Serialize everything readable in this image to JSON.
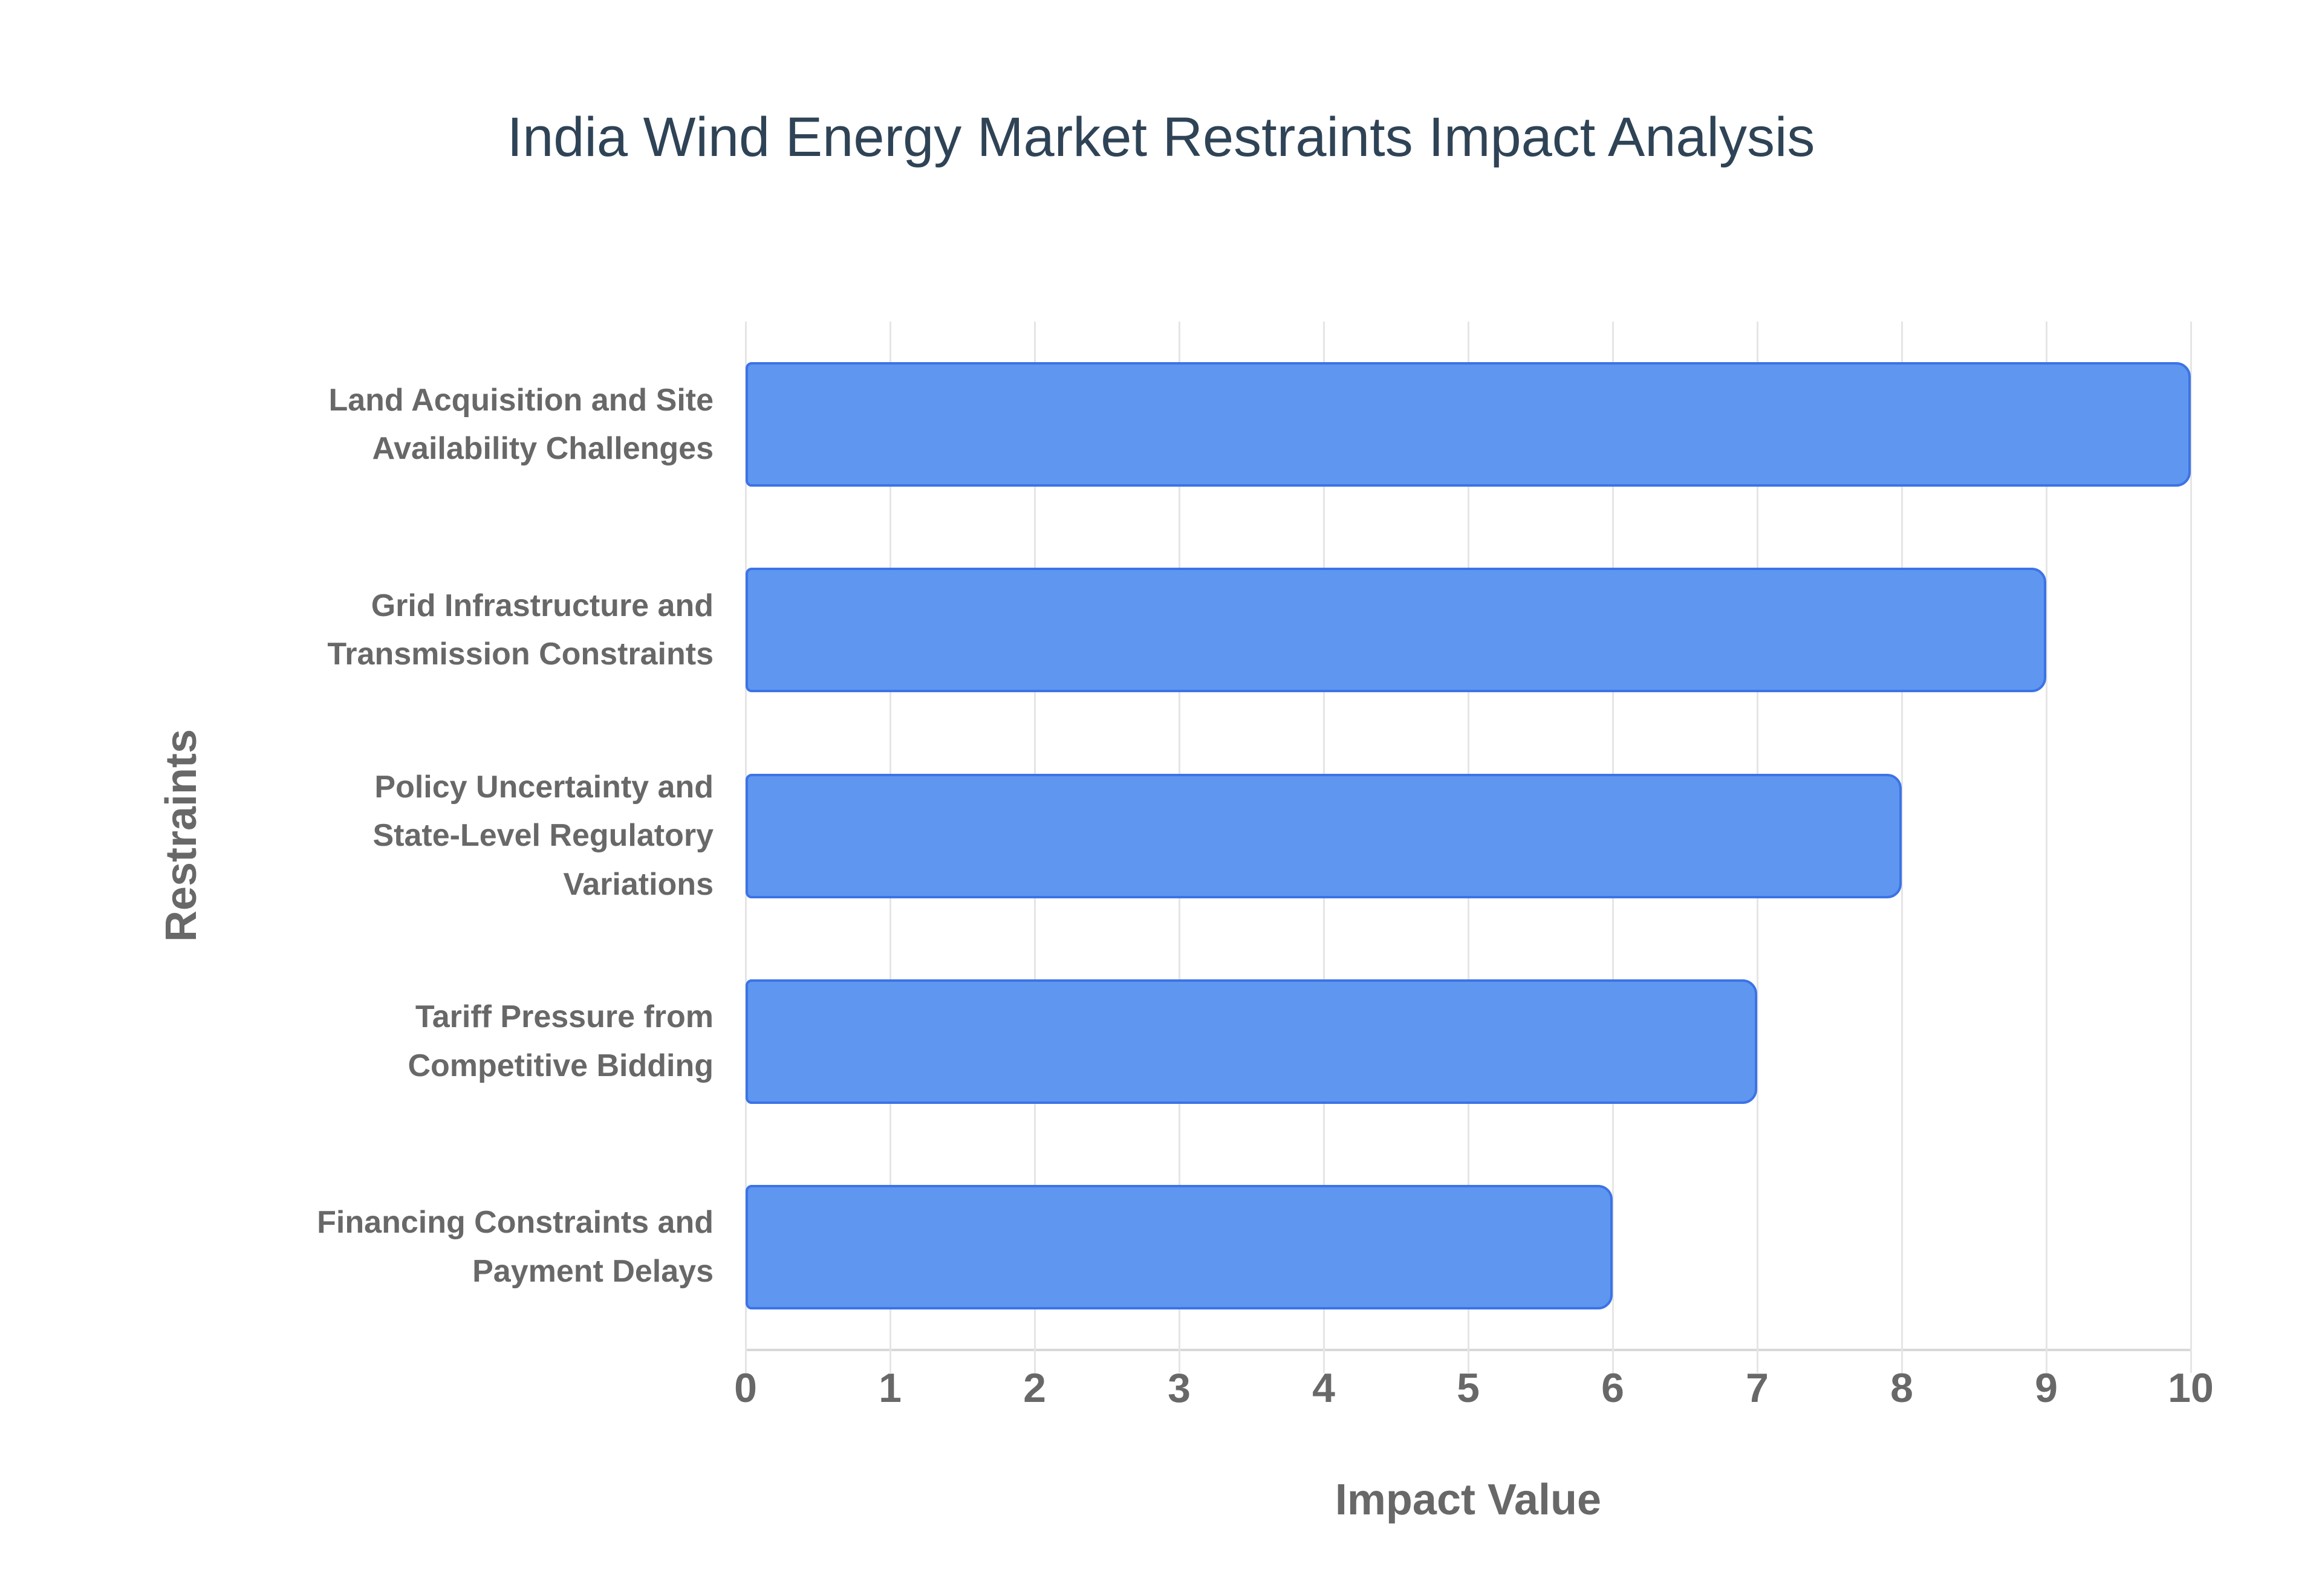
{
  "title": "India Wind Energy Market Restraints Impact Analysis",
  "colors": {
    "bar_fill": "#5f96f0",
    "bar_border": "#3c73e6",
    "gridline": "#e5e5e5",
    "axis_line": "#d8d8d8",
    "axis_text": "#686868",
    "title_text": "#2f4356",
    "background": "#ffffff"
  },
  "chart_data": {
    "type": "bar",
    "orientation": "horizontal",
    "title": "India Wind Energy Market Restraints Impact Analysis",
    "categories": [
      "Land Acquisition and Site Availability Challenges",
      "Grid Infrastructure and Transmission Constraints",
      "Policy Uncertainty and State-Level Regulatory Variations",
      "Tariff Pressure from Competitive Bidding",
      "Financing Constraints and Payment Delays"
    ],
    "category_lines": [
      [
        "Land Acquisition and Site",
        "Availability Challenges"
      ],
      [
        "Grid Infrastructure and",
        "Transmission Constraints"
      ],
      [
        "Policy Uncertainty and",
        "State-Level Regulatory",
        "Variations"
      ],
      [
        "Tariff Pressure from",
        "Competitive Bidding"
      ],
      [
        "Financing Constraints and",
        "Payment Delays"
      ]
    ],
    "values": [
      10,
      9,
      8,
      7,
      6
    ],
    "xlabel": "Impact Value",
    "ylabel": "Restraints",
    "xlim": [
      0,
      10
    ],
    "xticks": [
      0,
      1,
      2,
      3,
      4,
      5,
      6,
      7,
      8,
      9,
      10
    ],
    "grid": "vertical-only",
    "legend": "none"
  }
}
